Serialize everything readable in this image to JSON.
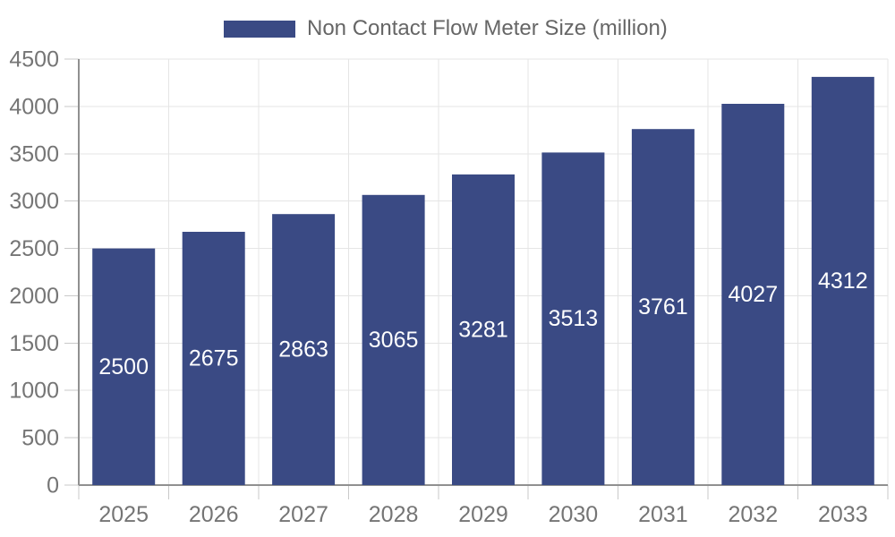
{
  "legend": {
    "label": "Non Contact Flow Meter Size (million)"
  },
  "chart_data": {
    "type": "bar",
    "title": "",
    "categories": [
      "2025",
      "2026",
      "2027",
      "2028",
      "2029",
      "2030",
      "2031",
      "2032",
      "2033"
    ],
    "series": [
      {
        "name": "Non Contact Flow Meter Size (million)",
        "values": [
          2500,
          2675,
          2863,
          3065,
          3281,
          3513,
          3761,
          4027,
          4312
        ]
      }
    ],
    "xlabel": "",
    "ylabel": "",
    "ylim": [
      0,
      4500
    ],
    "y_ticks": [
      0,
      500,
      1000,
      1500,
      2000,
      2500,
      3000,
      3500,
      4000,
      4500
    ],
    "grid": true,
    "legend_position": "top-center",
    "value_labels": "inside-vertical-center"
  },
  "colors": {
    "bar": "#3A4A84",
    "grid": "#E5E5E5",
    "axis": "#909090",
    "tick": "#C9C9C9",
    "axis_label": "#757575",
    "legend_text": "#666666",
    "value_label": "#FFFFFF",
    "background": "#FFFFFF"
  }
}
